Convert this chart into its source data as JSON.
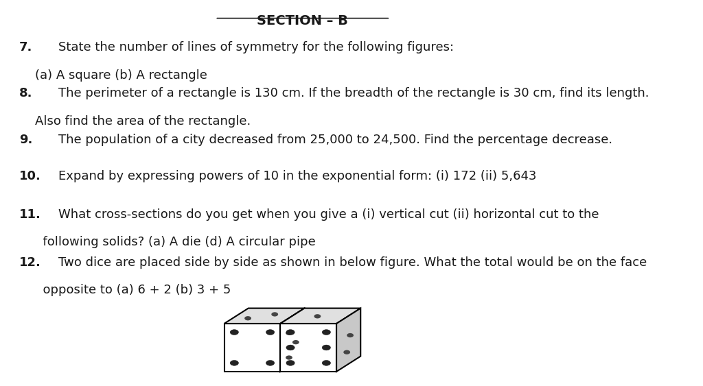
{
  "title": "SECTION – B",
  "background_color": "#ffffff",
  "text_color": "#1a1a1a",
  "questions": [
    {
      "number": "7.",
      "text": "State the number of lines of symmetry for the following figures:",
      "continuation": "    (a) A square (b) A rectangle"
    },
    {
      "number": "8.",
      "text": "The perimeter of a rectangle is 130 cm. If the breadth of the rectangle is 30 cm, find its length.",
      "continuation": "    Also find the area of the rectangle."
    },
    {
      "number": "9.",
      "text": "The population of a city decreased from 25,000 to 24,500. Find the percentage decrease.",
      "continuation": null
    },
    {
      "number": "10.",
      "text": "Expand by expressing powers of 10 in the exponential form: (i) 172 (ii) 5,643",
      "continuation": null
    },
    {
      "number": "11.",
      "text": "What cross-sections do you get when you give a (i) vertical cut (ii) horizontal cut to the",
      "continuation": "      following solids? (a) A die (d) A circular pipe"
    },
    {
      "number": "12.",
      "text": "Two dice are placed side by side as shown in below figure. What the total would be on the face",
      "continuation": "      opposite to (a) 6 + 2 (b) 3 + 5"
    }
  ],
  "title_fontsize": 14,
  "body_fontsize": 13,
  "figsize": [
    10.24,
    5.63
  ],
  "dpi": 100
}
